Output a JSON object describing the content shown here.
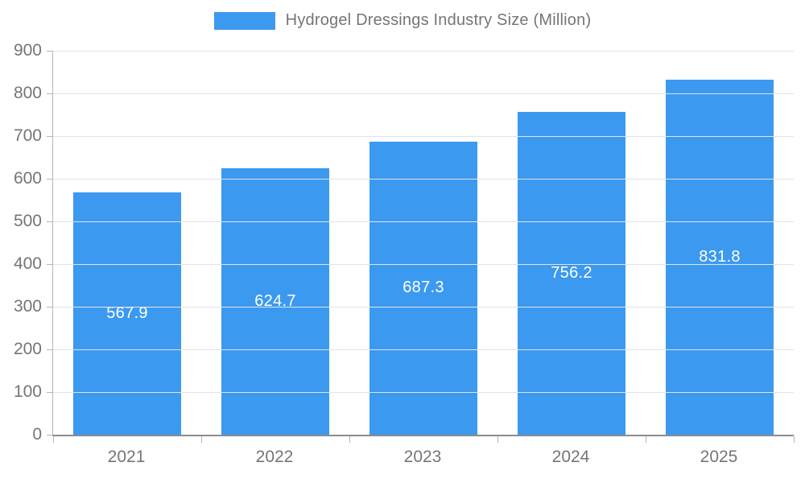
{
  "chart_data": {
    "type": "bar",
    "title": "Hydrogel Dressings Industry Size (Million)",
    "xlabel": "",
    "ylabel": "",
    "categories": [
      "2021",
      "2022",
      "2023",
      "2024",
      "2025"
    ],
    "values": [
      567.9,
      624.7,
      687.3,
      756.2,
      831.8
    ],
    "value_labels": [
      "567.9",
      "624.7",
      "687.3",
      "756.2",
      "831.8"
    ],
    "ylim": [
      0,
      900
    ],
    "yticks": [
      0,
      100,
      200,
      300,
      400,
      500,
      600,
      700,
      800,
      900
    ],
    "grid": true,
    "legend_position": "top-center",
    "colors": {
      "bar": "#3b99f0",
      "bar_value_text": "#ffffff",
      "axis_text": "#757575",
      "grid_line": "#e3e3e3",
      "axis_line": "#8c8c8c",
      "tick_line": "#b5b5b5",
      "background": "#ffffff"
    }
  },
  "legend": {
    "label": "Hydrogel Dressings Industry Size (Million)"
  }
}
